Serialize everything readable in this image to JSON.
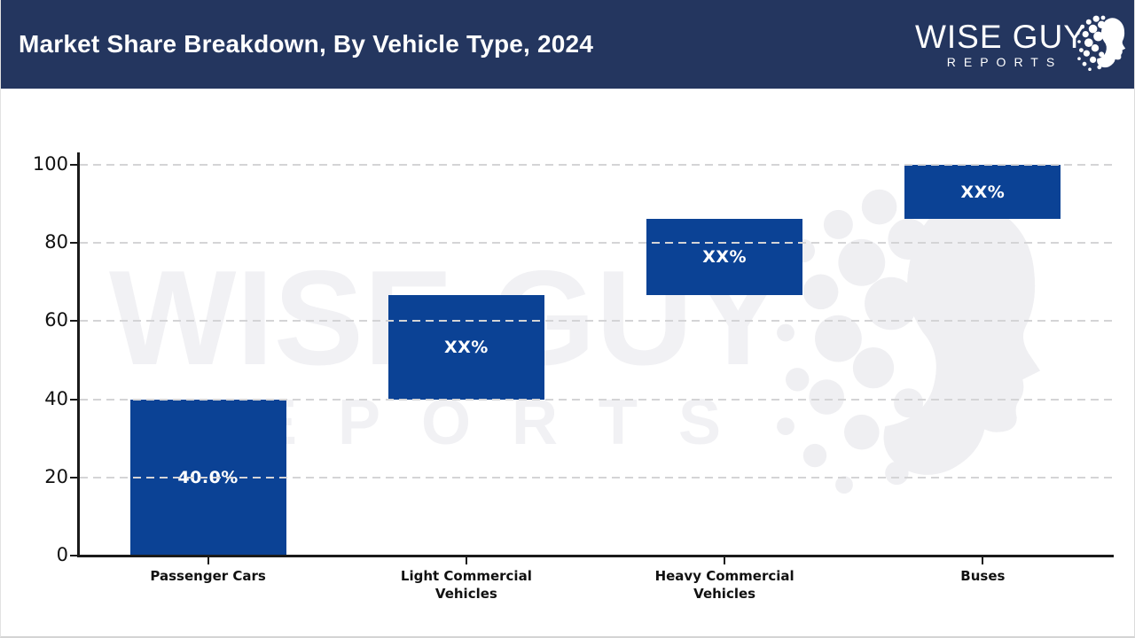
{
  "header": {
    "title": "Market Share Breakdown, By Vehicle Type, 2024",
    "logo": {
      "line1": "WISE GUY",
      "line2": "REPORTS",
      "icon": "dotted-head-profile"
    }
  },
  "watermark": {
    "line1": "WISE GUY",
    "line2": "REPORTS",
    "icon": "dotted-head-profile"
  },
  "colors": {
    "header_bg": "#24365f",
    "bar": "#0b4295",
    "bar_label": "#ffffff",
    "grid": "#d4d4d6",
    "axis": "#1a1a1a",
    "watermark": "#f1f1f4"
  },
  "chart_data": {
    "type": "bar",
    "subtype": "waterfall",
    "title": "Market Share Breakdown, By Vehicle Type, 2024",
    "xlabel": "",
    "ylabel": "",
    "categories": [
      "Passenger Cars",
      "Light Commercial\nVehicles",
      "Heavy Commercial\nVehicles",
      "Buses"
    ],
    "series": [
      {
        "name": "Market Share (%)",
        "segments": [
          {
            "category": "Passenger Cars",
            "start": 0,
            "end": 40,
            "label": "40.0%"
          },
          {
            "category": "Light Commercial Vehicles",
            "start": 40,
            "end": 66.7,
            "label": "XX%"
          },
          {
            "category": "Heavy Commercial Vehicles",
            "start": 66.7,
            "end": 86.1,
            "label": "XX%"
          },
          {
            "category": "Buses",
            "start": 86.1,
            "end": 100,
            "label": "XX%"
          }
        ]
      }
    ],
    "ylim": [
      0,
      100
    ],
    "yticks": [
      0,
      20,
      40,
      60,
      80,
      100
    ],
    "grid": "horizontal-dashed, drawn above bars",
    "legend": "none"
  }
}
